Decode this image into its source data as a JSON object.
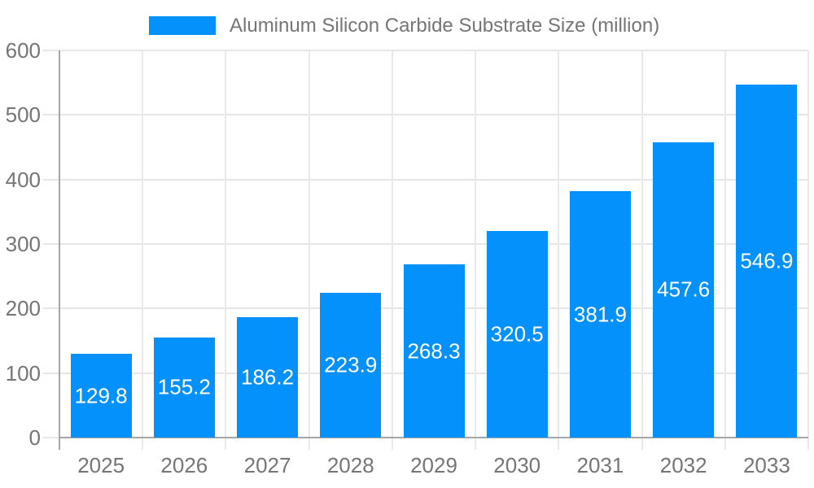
{
  "chart_data": {
    "type": "bar",
    "title": "Aluminum Silicon Carbide Substrate Size (million)",
    "legend": {
      "position": "top",
      "entries": [
        "Aluminum Silicon Carbide Substrate Size (million)"
      ]
    },
    "categories": [
      "2025",
      "2026",
      "2027",
      "2028",
      "2029",
      "2030",
      "2031",
      "2032",
      "2033"
    ],
    "series": [
      {
        "name": "Aluminum Silicon Carbide Substrate Size (million)",
        "values": [
          129.8,
          155.2,
          186.2,
          223.9,
          268.3,
          320.5,
          381.9,
          457.6,
          546.9
        ]
      }
    ],
    "data_labels_shown": true,
    "xlabel": "",
    "ylabel": "",
    "ylim": [
      0,
      600
    ],
    "yticks": [
      0,
      100,
      200,
      300,
      400,
      500,
      600
    ],
    "grid": true,
    "colors": {
      "bar": "#0591fb",
      "value_label_text": "#ffffff",
      "axis_text": "#757575",
      "title_text": "#757575",
      "gridline": "#e6e6e6",
      "axis_line": "#a6a6a6",
      "background": "#ffffff"
    }
  }
}
